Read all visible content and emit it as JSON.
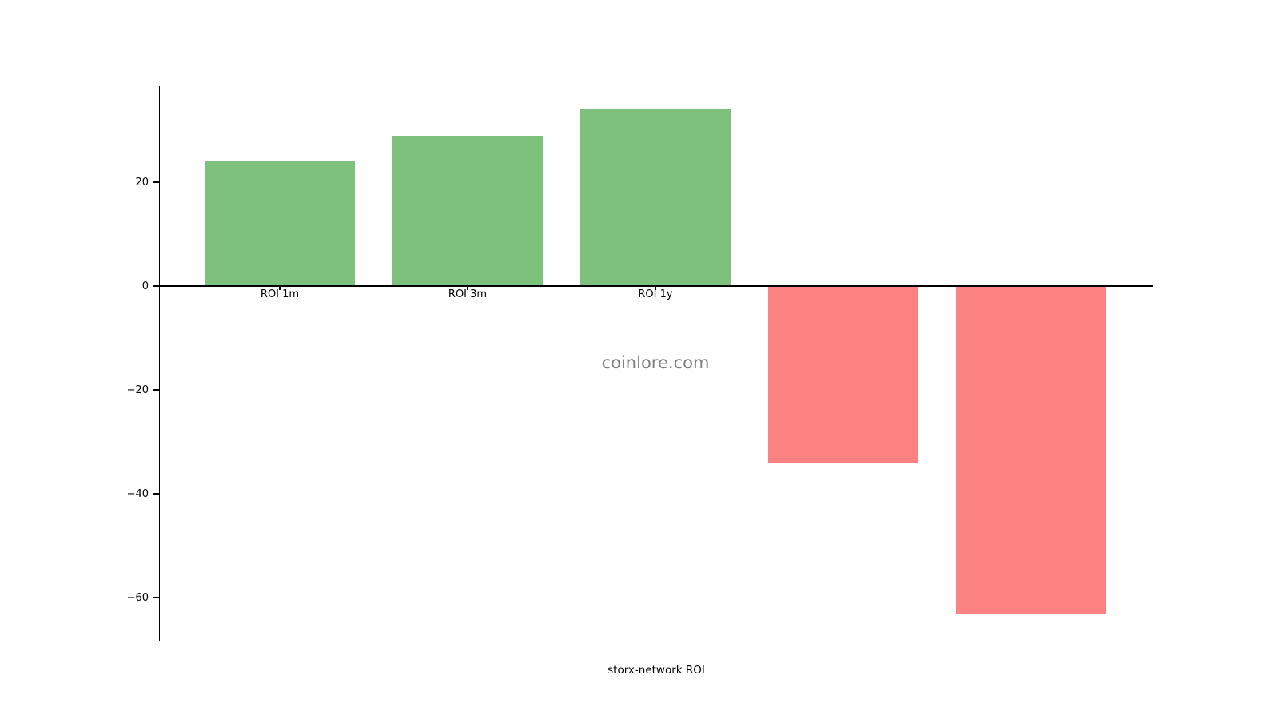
{
  "page": {
    "background_color": "#ffffff"
  },
  "chart_data": {
    "type": "bar",
    "title": "storx-network ROI",
    "watermark": "coinlore.com",
    "categories": [
      "ROI 1m",
      "ROI 3m",
      "ROI 1y",
      "",
      ""
    ],
    "values": [
      24,
      29,
      34,
      -34,
      -63
    ],
    "bar_colors": [
      "#7dc17d",
      "#7dc17d",
      "#7dc17d",
      "#fc8181",
      "#fc8181"
    ],
    "positive_color": "#7dc17d",
    "negative_color": "#fc8181",
    "yticks": [
      {
        "value": 20,
        "label": "20"
      },
      {
        "value": 0,
        "label": "0"
      },
      {
        "value": -20,
        "label": "−20"
      },
      {
        "value": -40,
        "label": "−40"
      },
      {
        "value": -60,
        "label": "−60"
      }
    ],
    "ylim": [
      -68.5,
      38.5
    ],
    "xlabel": "",
    "ylabel": "",
    "grid": false,
    "legend": null,
    "axis_color": "#000000",
    "text_color": "#000000",
    "watermark_color": "#7f7f7f"
  }
}
